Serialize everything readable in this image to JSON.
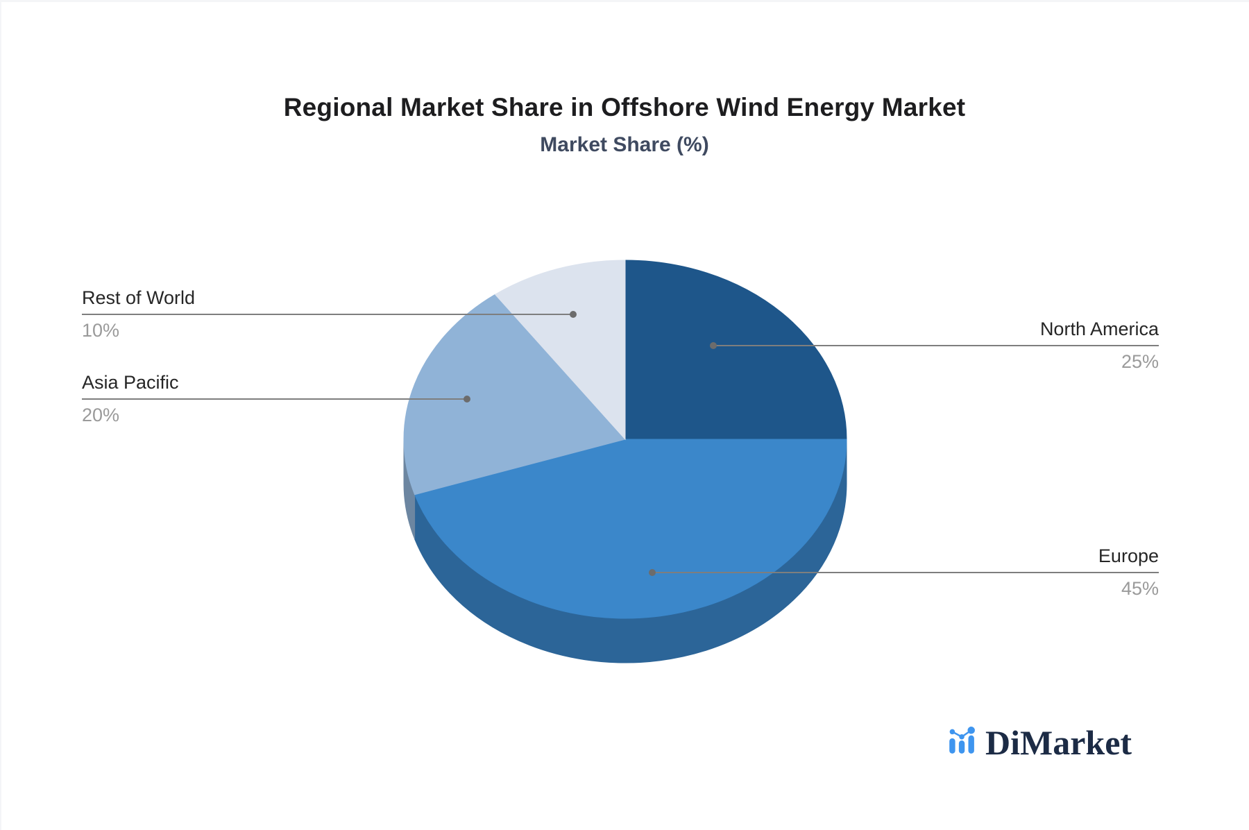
{
  "chart_data": {
    "type": "pie",
    "style": "3d",
    "title": "Regional Market Share in Offshore Wind Energy Market",
    "subtitle": "Market Share (%)",
    "unit": "%",
    "start_angle": "top",
    "direction": "clockwise",
    "legend_position": "callouts",
    "slices": [
      {
        "label": "North America",
        "value": 25,
        "value_label": "25%",
        "color": "#1E568A"
      },
      {
        "label": "Europe",
        "value": 45,
        "value_label": "45%",
        "color": "#3B87CA"
      },
      {
        "label": "Asia Pacific",
        "value": 20,
        "value_label": "20%",
        "color": "#90B3D7"
      },
      {
        "label": "Rest of World",
        "value": 10,
        "value_label": "10%",
        "color": "#DCE3EE"
      }
    ],
    "callout_line_color": "#7E7E7E",
    "label_color": "#262626",
    "value_color": "#9A9A9A"
  },
  "branding": {
    "name": "DiMarket",
    "icon": "bar-line-chart-icon",
    "color": "#1C2B45",
    "icon_color": "#3E95EF"
  }
}
